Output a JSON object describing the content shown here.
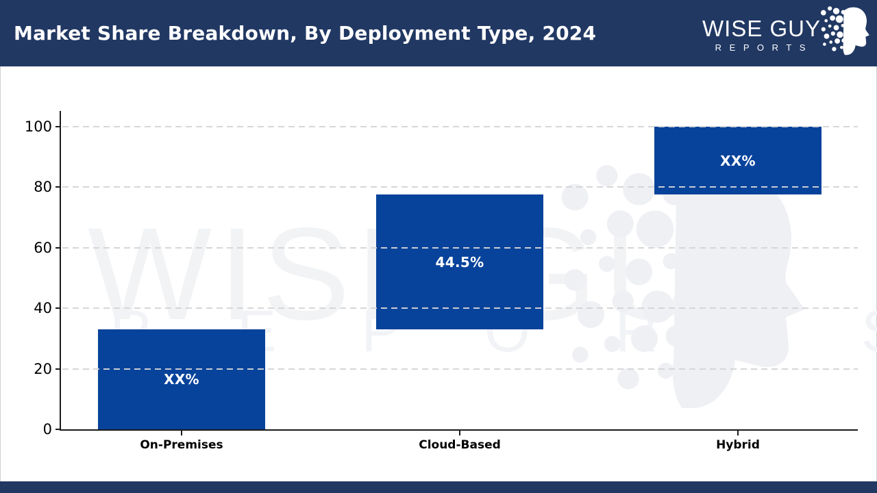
{
  "header": {
    "title": "Market Share Breakdown, By Deployment Type, 2024",
    "brand": {
      "name": "WISE GUY",
      "subtitle": "R E P O R T S",
      "logo_icon": "dotted-face-profile"
    }
  },
  "watermark": {
    "line1": "WISE GUY",
    "line2": "R E P O R T S",
    "icon": "dotted-face-profile"
  },
  "chart_data": {
    "type": "bar",
    "subtype": "waterfall-range-bars",
    "title": "Market Share Breakdown, By Deployment Type, 2024",
    "categories": [
      "On-Premises",
      "Cloud-Based",
      "Hybrid"
    ],
    "series": [
      {
        "name": "Market share (%)",
        "segments": [
          {
            "category": "On-Premises",
            "start": 0,
            "end": 33,
            "value_label": "XX%"
          },
          {
            "category": "Cloud-Based",
            "start": 33,
            "end": 77.5,
            "value_label": "44.5%"
          },
          {
            "category": "Hybrid",
            "start": 77.5,
            "end": 100,
            "value_label": "XX%"
          }
        ]
      }
    ],
    "xlabel": "",
    "ylabel": "",
    "ylim": [
      0,
      105
    ],
    "yticks": [
      0,
      20,
      40,
      60,
      80,
      100
    ],
    "grid": "horizontal-dashed",
    "grid_above_bars": true,
    "legend": "none",
    "bar_color": "#08439b",
    "bar_label_color": "#ffffff"
  },
  "colors": {
    "header_bg": "#213863",
    "footer_bg": "#213863",
    "bar": "#08439b",
    "gridline": "#d4d4d6",
    "axis": "#1a1a1a",
    "watermark": "#f2f3f5"
  }
}
